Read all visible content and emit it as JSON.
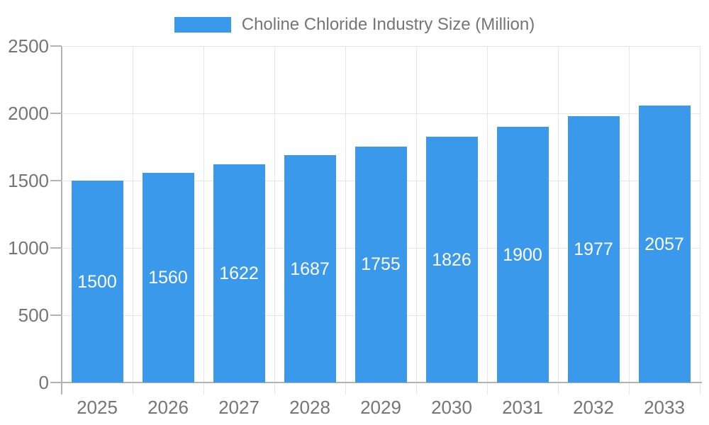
{
  "chart_data": {
    "type": "bar",
    "title": "Choline Chloride Industry Size (Million)",
    "categories": [
      "2025",
      "2026",
      "2027",
      "2028",
      "2029",
      "2030",
      "2031",
      "2032",
      "2033"
    ],
    "series": [
      {
        "name": "Choline Chloride Industry Size (Million)",
        "values": [
          1500,
          1560,
          1622,
          1687,
          1755,
          1826,
          1900,
          1977,
          2057
        ]
      }
    ],
    "xlabel": "",
    "ylabel": "",
    "ylim": [
      0,
      2500
    ],
    "yticks": [
      0,
      500,
      1000,
      1500,
      2000,
      2500
    ],
    "grid": true,
    "legend_position": "top-center",
    "bar_value_labels": "centered-inside-white",
    "colors": {
      "bar": "#3B99EC",
      "axis_text": "#757575",
      "bar_label_text": "#FFFFFF",
      "gridline": "#E6E6E6",
      "axis_line": "#B3B3B3",
      "background": "#FFFFFF"
    }
  },
  "legend": {
    "label": "Choline Chloride Industry Size (Million)"
  }
}
